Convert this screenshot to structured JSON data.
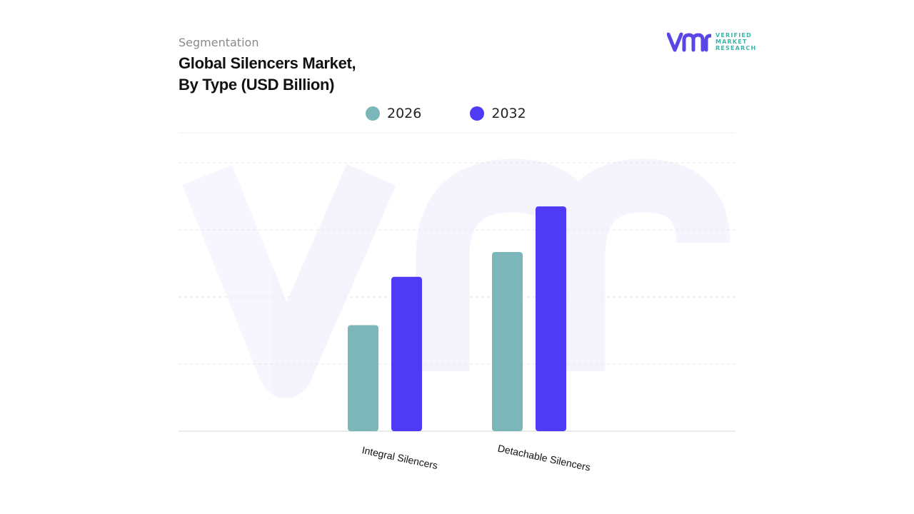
{
  "header": {
    "segment": "Segmentation",
    "title_line1": "Global Silencers Market,",
    "title_line2": "By Type (USD Billion)"
  },
  "logo": {
    "line1": "VERIFIED",
    "line2": "MARKET",
    "line3": "RESEARCH",
    "color_mark": "#5a46e6",
    "color_text": "#3cb4a8"
  },
  "chart_data": {
    "type": "bar",
    "title": "Global Silencers Market, By Type (USD Billion)",
    "categories": [
      "Integral Silencers",
      "Detachable Silencers"
    ],
    "series": [
      {
        "name": "2026",
        "color": "#7bb7b9",
        "values": [
          1.58,
          2.67
        ]
      },
      {
        "name": "2032",
        "color": "#4f3af5",
        "values": [
          2.3,
          3.35
        ]
      }
    ],
    "ylim": [
      0,
      4
    ],
    "legend_position": "top-center",
    "grid": true
  }
}
